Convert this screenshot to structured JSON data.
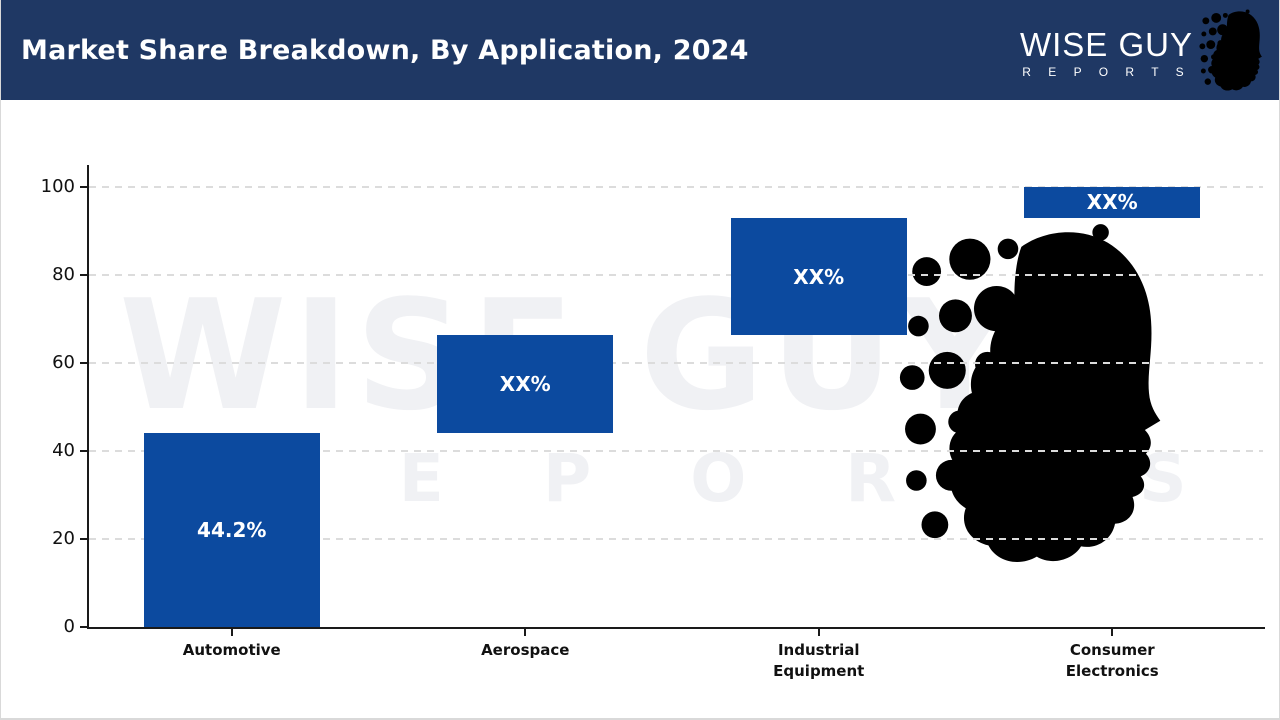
{
  "header": {
    "title": "Market Share Breakdown, By Application, 2024",
    "logo": {
      "name": "WISE GUY",
      "subtitle": "R E P O R T S"
    }
  },
  "watermark": {
    "line1": "WISE GUY",
    "line2": "R E P O R T S"
  },
  "colors": {
    "header_bg": "#1f3864",
    "bar": "#0c4a9f",
    "grid": "#dcdcdc",
    "axis": "#1a1a1a",
    "watermark": "#f0f1f4"
  },
  "chart_data": {
    "type": "bar",
    "subtype": "waterfall",
    "title": "Market Share Breakdown, By Application, 2024",
    "categories": [
      "Automotive",
      "Aerospace",
      "Industrial Equipment",
      "Consumer Electronics"
    ],
    "segments": [
      {
        "category": "Automotive",
        "start": 0,
        "end": 44.2,
        "label": "44.2%"
      },
      {
        "category": "Aerospace",
        "start": 44.2,
        "end": 66.3,
        "label": "XX%"
      },
      {
        "category": "Industrial Equipment",
        "start": 66.3,
        "end": 93,
        "label": "XX%"
      },
      {
        "category": "Consumer Electronics",
        "start": 93,
        "end": 100,
        "label": "XX%"
      }
    ],
    "xlabel": "",
    "ylabel": "",
    "yticks": [
      0,
      20,
      40,
      60,
      80,
      100
    ],
    "ylim": [
      0,
      105
    ],
    "grid": "horizontal-dashed",
    "legend": "none"
  }
}
